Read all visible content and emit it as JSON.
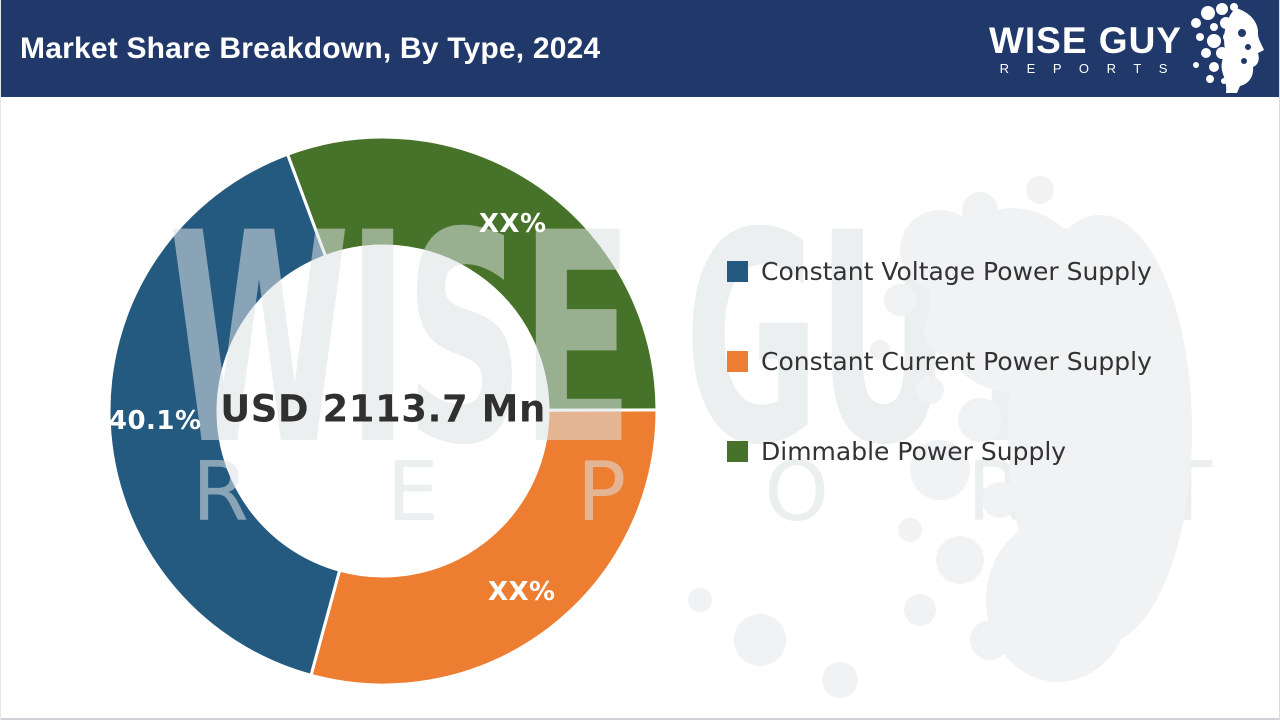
{
  "header": {
    "title": "Market Share Breakdown, By Type, 2024",
    "logo": {
      "name": "WISE GUY",
      "subtitle": "R E P O R T S"
    }
  },
  "chart_data": {
    "type": "donut",
    "center_label": "USD 2113.7 Mn",
    "start_angle_deg": 339.6,
    "inner_radius_ratio": 0.6,
    "slices": [
      {
        "name": "Dimmable Power Supply",
        "display_label": "XX%",
        "value_pct_est": 30.6,
        "color": "#467329"
      },
      {
        "name": "Constant Current Power Supply",
        "display_label": "XX%",
        "value_pct_est": 29.3,
        "color": "#ED7D31"
      },
      {
        "name": "Constant Voltage Power Supply",
        "display_label": "40.1%",
        "value_pct_est": 40.1,
        "color": "#245980"
      }
    ],
    "legend_position": "right"
  },
  "legend": {
    "items": [
      {
        "label": "Constant Voltage Power Supply",
        "color": "#245980"
      },
      {
        "label": "Constant Current Power Supply",
        "color": "#ED7D31"
      },
      {
        "label": "Dimmable Power Supply",
        "color": "#467329"
      }
    ]
  },
  "watermark": {
    "line1": "WISE GUY",
    "line2": "R E P O R T S"
  },
  "colors": {
    "header_bg": "#20386A",
    "accent_blue": "#245980",
    "accent_orange": "#ED7D31",
    "accent_green": "#467329"
  }
}
